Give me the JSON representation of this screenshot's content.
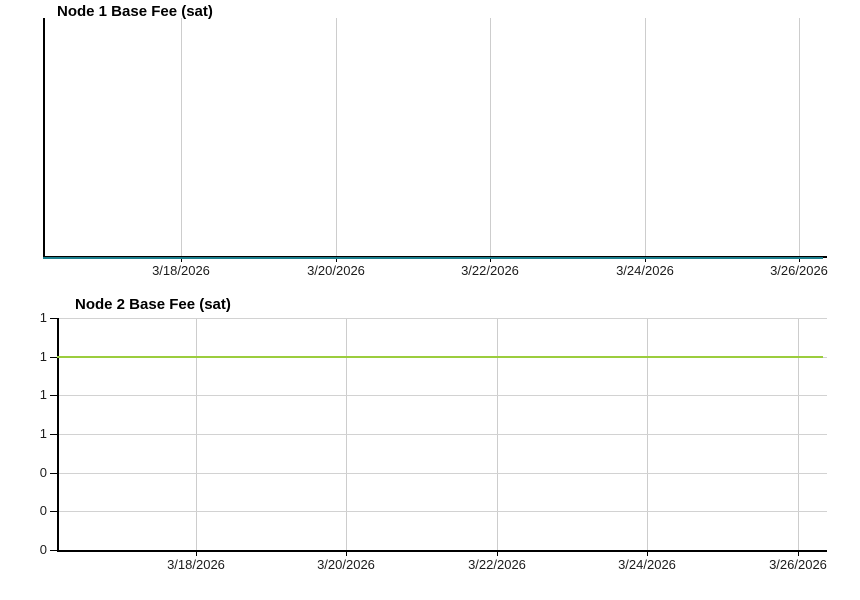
{
  "page": {
    "background_color": "#ffffff"
  },
  "chart_data": [
    {
      "type": "line",
      "title": "Node 1 Base Fee (sat)",
      "xlabel": "",
      "ylabel": "",
      "legend": "none",
      "grid": "vertical",
      "x_tick_labels": [
        "3/18/2026",
        "3/20/2026",
        "3/22/2026",
        "3/24/2026",
        "3/26/2026"
      ],
      "y_tick_labels": [],
      "ylim": [
        0,
        1
      ],
      "series": [
        {
          "name": "Node 1 Base Fee (sat)",
          "color": "#1b7f8d",
          "constant_value": 0,
          "description": "flat line at 0 sat along the x-axis for the full date range"
        }
      ]
    },
    {
      "type": "line",
      "title": "Node 2 Base Fee (sat)",
      "xlabel": "",
      "ylabel": "",
      "legend": "none",
      "grid": "both",
      "x_tick_labels": [
        "3/18/2026",
        "3/20/2026",
        "3/22/2026",
        "3/24/2026",
        "3/26/2026"
      ],
      "y_tick_labels": [
        "1",
        "1",
        "1",
        "1",
        "0",
        "0",
        "0"
      ],
      "y_tick_values": [
        1.2,
        1.0,
        0.8,
        0.6,
        0.4,
        0.2,
        0
      ],
      "ylim": [
        0,
        1.2
      ],
      "series": [
        {
          "name": "Node 2 Base Fee (sat)",
          "color": "#9bcd3d",
          "constant_value": 1,
          "description": "flat line at 1 sat for the full date range"
        }
      ]
    }
  ]
}
